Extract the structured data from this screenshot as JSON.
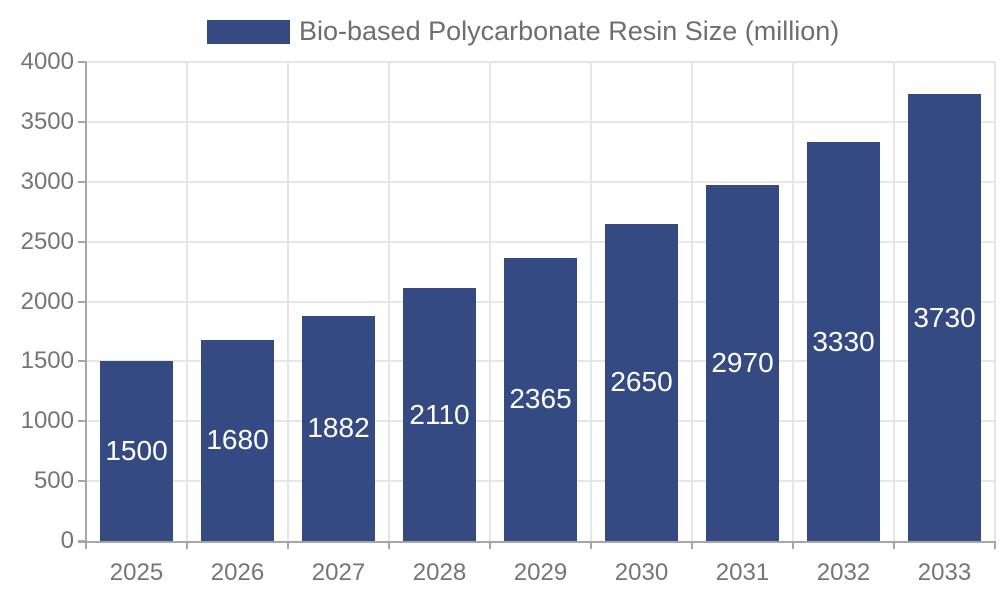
{
  "legend": {
    "label": "Bio-based Polycarbonate Resin Size (million)"
  },
  "chart_data": {
    "type": "bar",
    "title": "Bio-based Polycarbonate Resin Size (million)",
    "categories": [
      "2025",
      "2026",
      "2027",
      "2028",
      "2029",
      "2030",
      "2031",
      "2032",
      "2033"
    ],
    "values": [
      1500,
      1680,
      1882,
      2110,
      2365,
      2650,
      2970,
      3330,
      3730
    ],
    "xlabel": "",
    "ylabel": "",
    "ylim": [
      0,
      4000
    ],
    "ytick_step": 500,
    "yticks": [
      "0",
      "500",
      "1000",
      "1500",
      "2000",
      "2500",
      "3000",
      "3500",
      "4000"
    ],
    "grid": true,
    "legend_position": "top",
    "value_labels": "inside-center"
  },
  "colors": {
    "bar": "#354a83",
    "grid": "#e6e6e6",
    "axis": "#a6a6a6",
    "axis_label": "#757575",
    "legend_text": "#6e6e6e",
    "value_label": "#ffffff",
    "background": "#ffffff"
  }
}
